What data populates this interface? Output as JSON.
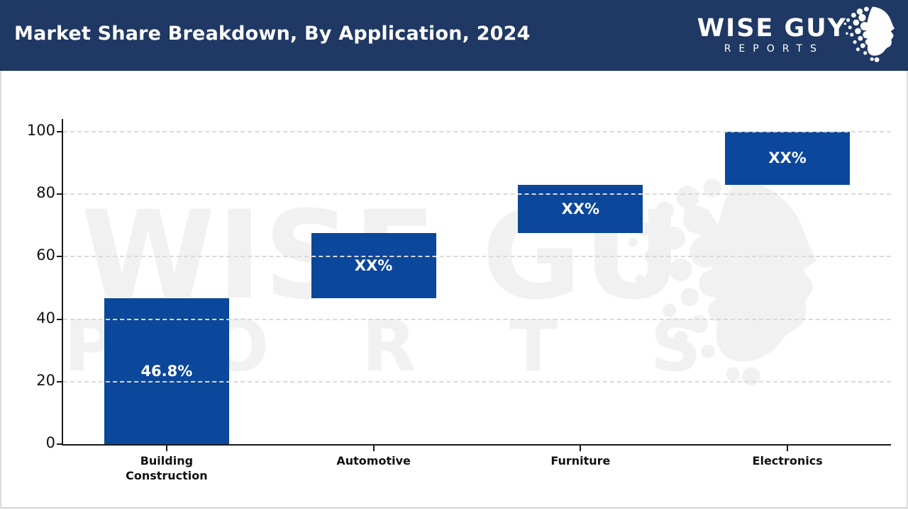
{
  "header": {
    "title": "Market Share Breakdown, By Application, 2024",
    "logo": {
      "line1": "WISE GUY",
      "line2": "REPORTS"
    }
  },
  "watermark": {
    "line1": "WISE GUY",
    "line2": "P O R T S"
  },
  "colors": {
    "header_bg": "#1f3864",
    "bar": "#0b479b",
    "grid": "#d9d9d9",
    "axis": "#1a1a1a",
    "watermark": "#f1f1f1",
    "bar_label": "#ffffff"
  },
  "chart_data": {
    "type": "bar",
    "subtype": "waterfall",
    "title": "Market Share Breakdown, By Application, 2024",
    "categories": [
      [
        "Building",
        "Construction"
      ],
      [
        "Automotive"
      ],
      [
        "Furniture"
      ],
      [
        "Electronics"
      ]
    ],
    "segments": [
      {
        "category": "Building Construction",
        "start": 0,
        "end": 46.8,
        "label": "46.8%"
      },
      {
        "category": "Automotive",
        "start": 46.8,
        "end": 67.5,
        "label": "XX%"
      },
      {
        "category": "Furniture",
        "start": 67.5,
        "end": 83,
        "label": "XX%"
      },
      {
        "category": "Electronics",
        "start": 83,
        "end": 100,
        "label": "XX%"
      }
    ],
    "ylim": [
      0,
      100
    ],
    "yticks": [
      0,
      20,
      40,
      60,
      80,
      100
    ],
    "xlabel": "",
    "ylabel": "",
    "grid": "horizontal-dashed",
    "legend": "none"
  }
}
